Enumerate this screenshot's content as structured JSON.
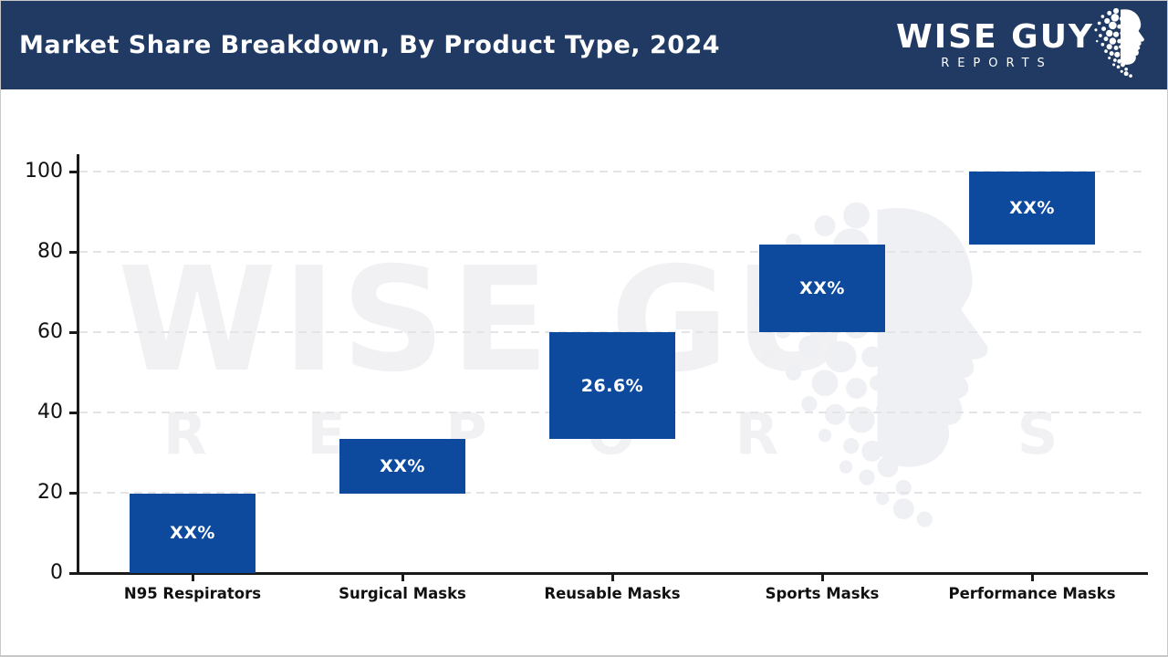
{
  "header": {
    "title": "Market Share Breakdown, By Product Type, 2024",
    "background_color": "#203a64",
    "logo": {
      "line1": "WISE GUY",
      "line2": "REPORTS"
    }
  },
  "watermark": {
    "line1": "WISE GUY",
    "line2": "R E P O R T S"
  },
  "chart_data": {
    "type": "bar",
    "subtype": "floating-waterfall-segments",
    "title": "Market Share Breakdown, By Product Type, 2024",
    "categories": [
      "N95 Respirators",
      "Surgical Masks",
      "Reusable Masks",
      "Sports Masks",
      "Performance Masks"
    ],
    "segments": [
      {
        "category": "N95 Respirators",
        "start": 0,
        "end": 19.8,
        "label": "XX%"
      },
      {
        "category": "Surgical Masks",
        "start": 19.8,
        "end": 33.4,
        "label": "XX%"
      },
      {
        "category": "Reusable Masks",
        "start": 33.4,
        "end": 60.0,
        "label": "26.6%"
      },
      {
        "category": "Sports Masks",
        "start": 60.0,
        "end": 81.8,
        "label": "XX%"
      },
      {
        "category": "Performance Masks",
        "start": 81.8,
        "end": 100.0,
        "label": "XX%"
      }
    ],
    "xlabel": "",
    "ylabel": "",
    "ylim": [
      0,
      100
    ],
    "yticks": [
      0,
      20,
      40,
      60,
      80,
      100
    ],
    "grid": "horizontal-dashed",
    "legend": "none",
    "bar_color": "#0d4a9e",
    "bar_label_color": "#ffffff",
    "axis_color": "#1a1a1a"
  }
}
